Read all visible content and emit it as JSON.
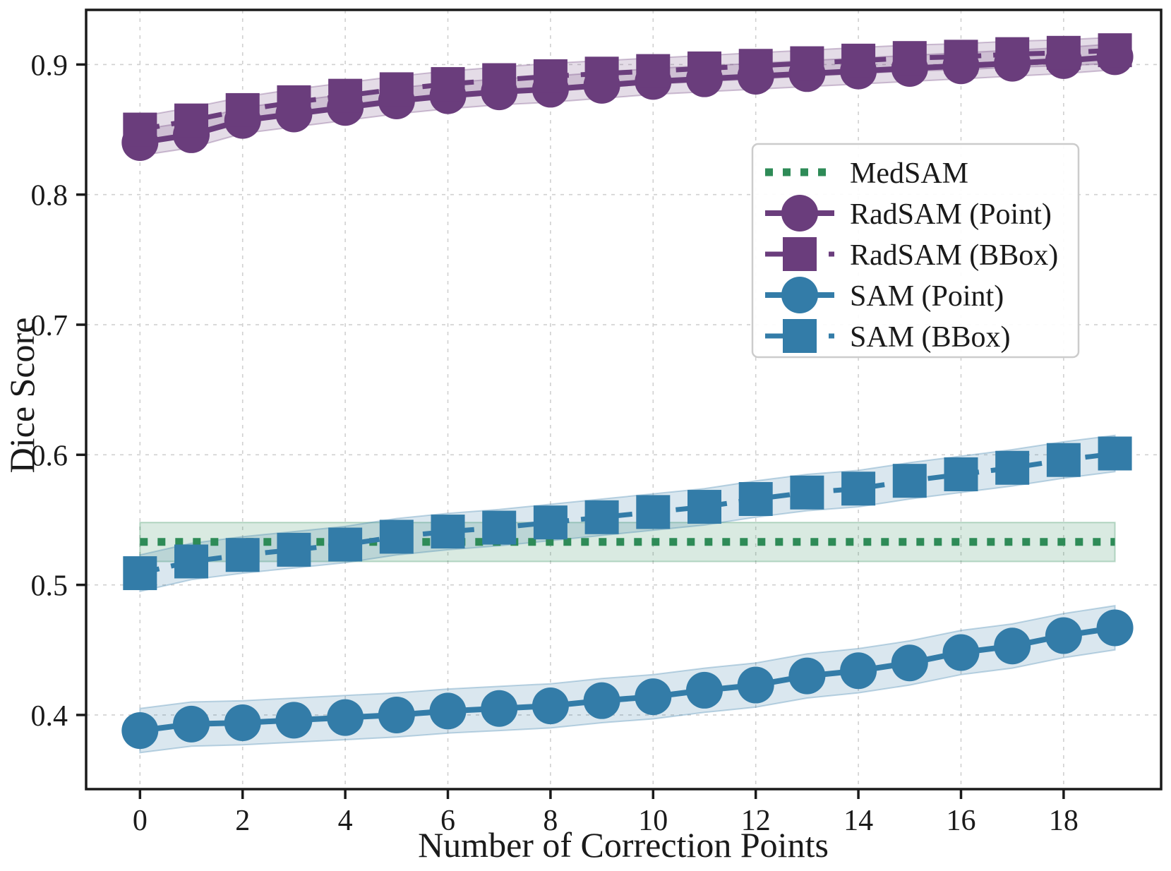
{
  "chart_data": {
    "type": "line",
    "title": "",
    "xlabel": "Number of Correction Points",
    "ylabel": "Dice Score",
    "x": [
      0,
      1,
      2,
      3,
      4,
      5,
      6,
      7,
      8,
      9,
      10,
      11,
      12,
      13,
      14,
      15,
      16,
      17,
      18,
      19
    ],
    "x_ticks": [
      0,
      2,
      4,
      6,
      8,
      10,
      12,
      14,
      16,
      18
    ],
    "y_ticks": [
      0.4,
      0.5,
      0.6,
      0.7,
      0.8,
      0.9
    ],
    "xlim": [
      -1.05,
      19.9
    ],
    "ylim": [
      0.343,
      0.942
    ],
    "grid": true,
    "grid_style": "dashed",
    "legend_position": "upper right",
    "colors": {
      "radsam_purple": "#6a3d7c",
      "sam_blue": "#337ca8",
      "medsam_green": "#2e8b57",
      "grid_gray": "#d0d0d0",
      "spine_black": "#1a1a1a"
    },
    "series": [
      {
        "name": "MedSAM",
        "color": "#2e8b57",
        "line_style": "dotted",
        "marker": "none",
        "band": 0.015,
        "values": [
          0.533,
          0.533,
          0.533,
          0.533,
          0.533,
          0.533,
          0.533,
          0.533,
          0.533,
          0.533,
          0.533,
          0.533,
          0.533,
          0.533,
          0.533,
          0.533,
          0.533,
          0.533,
          0.533,
          0.533
        ]
      },
      {
        "name": "RadSAM (Point)",
        "color": "#6a3d7c",
        "line_style": "solid",
        "marker": "circle",
        "band": 0.01,
        "values": [
          0.84,
          0.846,
          0.857,
          0.862,
          0.867,
          0.872,
          0.876,
          0.879,
          0.881,
          0.884,
          0.887,
          0.889,
          0.891,
          0.893,
          0.895,
          0.897,
          0.899,
          0.901,
          0.903,
          0.906
        ]
      },
      {
        "name": "RadSAM (BBox)",
        "color": "#6a3d7c",
        "line_style": "dashed",
        "marker": "square",
        "band": 0.01,
        "values": [
          0.85,
          0.857,
          0.865,
          0.871,
          0.876,
          0.881,
          0.885,
          0.888,
          0.891,
          0.893,
          0.895,
          0.897,
          0.899,
          0.901,
          0.903,
          0.905,
          0.906,
          0.908,
          0.909,
          0.911
        ]
      },
      {
        "name": "SAM (Point)",
        "color": "#337ca8",
        "line_style": "solid",
        "marker": "circle",
        "band": 0.017,
        "values": [
          0.388,
          0.393,
          0.394,
          0.396,
          0.398,
          0.4,
          0.403,
          0.405,
          0.407,
          0.411,
          0.414,
          0.419,
          0.423,
          0.43,
          0.434,
          0.44,
          0.448,
          0.453,
          0.461,
          0.467
        ]
      },
      {
        "name": "SAM (BBox)",
        "color": "#337ca8",
        "line_style": "dashed",
        "marker": "square",
        "band": 0.014,
        "values": [
          0.509,
          0.518,
          0.523,
          0.527,
          0.531,
          0.537,
          0.541,
          0.544,
          0.548,
          0.552,
          0.556,
          0.56,
          0.566,
          0.571,
          0.574,
          0.58,
          0.585,
          0.59,
          0.596,
          0.601
        ]
      }
    ]
  }
}
